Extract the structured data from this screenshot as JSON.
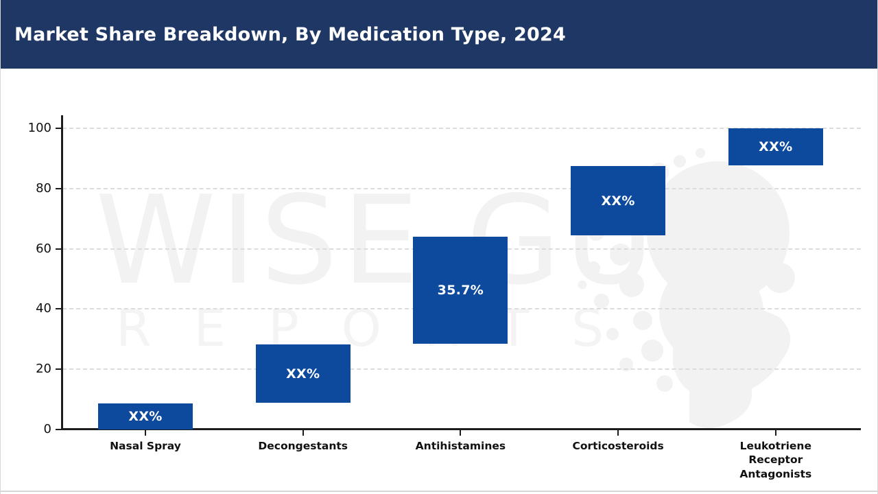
{
  "header": {
    "title": "Market Share Breakdown, By Medication Type, 2024",
    "logo": {
      "line1": "WISE GUY",
      "line2": "REPORTS"
    }
  },
  "watermark": {
    "line1": "WISE GUY",
    "line2": "REPORTS"
  },
  "colors": {
    "header_bg": "#1f3765",
    "bar_blue": "#0d4a9e",
    "grid_gray": "#dcdcdc",
    "watermark_gray": "#f2f2f2",
    "axis_black": "#1c1c1c"
  },
  "chart_data": {
    "type": "bar",
    "variant": "waterfall",
    "title": "Market Share Breakdown, By Medication Type, 2024",
    "xlabel": "",
    "ylabel": "",
    "categories": [
      "Nasal Spray",
      "Decongestants",
      "Antihistamines",
      "Corticosteroids",
      "Leukotriene Receptor Antagonists"
    ],
    "bars": [
      {
        "category": "Nasal Spray",
        "base": 0,
        "top": 8.7,
        "label": "XX%"
      },
      {
        "category": "Decongestants",
        "base": 8.9,
        "top": 28.2,
        "label": "XX%"
      },
      {
        "category": "Antihistamines",
        "base": 28.4,
        "top": 64.1,
        "label": "35.7%"
      },
      {
        "category": "Corticosteroids",
        "base": 64.4,
        "top": 87.4,
        "label": "XX%"
      },
      {
        "category": "Leukotriene Receptor Antagonists",
        "base": 87.6,
        "top": 100,
        "label": "XX%"
      }
    ],
    "ylim": [
      0,
      100
    ],
    "yticks": [
      0,
      20,
      40,
      60,
      80,
      100
    ],
    "grid": true,
    "legend": false,
    "bar_color": "#0d4a9e",
    "bar_label_color": "#ffffff"
  }
}
